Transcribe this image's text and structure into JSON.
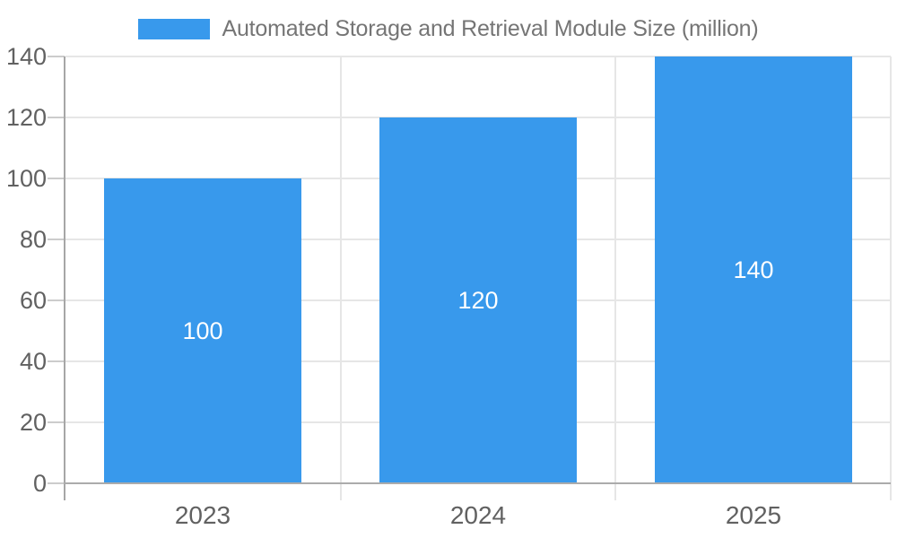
{
  "chart_data": {
    "type": "bar",
    "title": "",
    "legend": "Automated Storage and Retrieval Module Size (million)",
    "legend_position": "top",
    "categories": [
      "2023",
      "2024",
      "2025"
    ],
    "values": [
      100,
      120,
      140
    ],
    "bar_value_labels": [
      "100",
      "120",
      "140"
    ],
    "xlabel": "",
    "ylabel": "",
    "ylim": [
      0,
      140
    ],
    "yticks": [
      0,
      20,
      40,
      60,
      80,
      100,
      120,
      140
    ],
    "ytick_labels": [
      "0",
      "20",
      "40",
      "60",
      "80",
      "100",
      "120",
      "140"
    ],
    "grid": true,
    "colors": {
      "bar": "#3899ec",
      "bar_label_text": "#ffffff",
      "gridline": "#e6e6e6",
      "tick_mark": "#cccccc",
      "axis_line": "#a6a6a6",
      "baseline": "#ababab",
      "tick_label_text": "#616161",
      "legend_text": "#757575",
      "background": "#ffffff"
    }
  }
}
